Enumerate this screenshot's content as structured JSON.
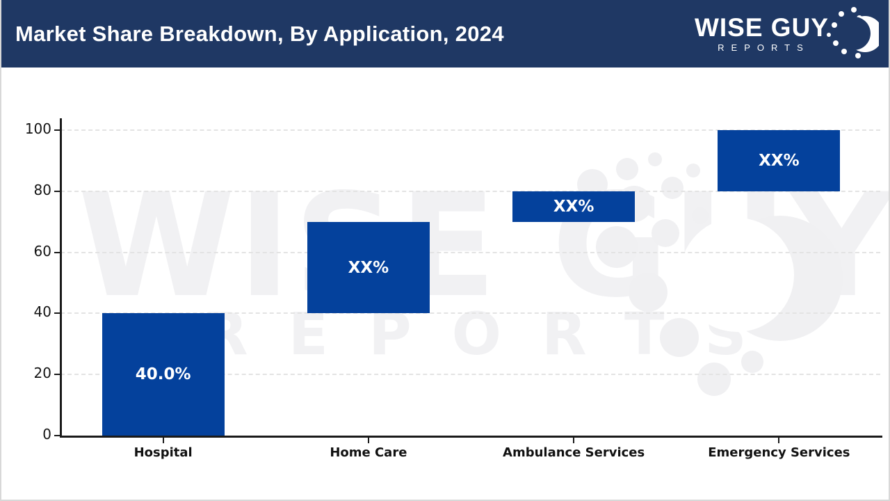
{
  "header": {
    "title": "Market Share Breakdown, By Application, 2024",
    "logo": {
      "name": "WISE GUY",
      "sub": "REPORTS",
      "icon": "dotted-face-profile"
    }
  },
  "watermark": {
    "line1": "WISE GUY",
    "line2": "REPORTS"
  },
  "colors": {
    "header_bg": "#1f3864",
    "bar": "#04419c",
    "grid": "#e3e3e3",
    "axis": "#1a1a1a",
    "bar_label": "#ffffff",
    "watermark": "#f1f1f3"
  },
  "chart_data": {
    "type": "bar",
    "subtype": "waterfall",
    "title": "Market Share Breakdown, By Application, 2024",
    "categories": [
      "Hospital",
      "Home Care",
      "Ambulance Services",
      "Emergency Services"
    ],
    "segments": [
      {
        "category": "Hospital",
        "start": 0,
        "end": 40,
        "label": "40.0%"
      },
      {
        "category": "Home Care",
        "start": 40,
        "end": 70,
        "label": "XX%"
      },
      {
        "category": "Ambulance Services",
        "start": 70,
        "end": 80,
        "label": "XX%"
      },
      {
        "category": "Emergency Services",
        "start": 80,
        "end": 100,
        "label": "XX%"
      }
    ],
    "yticks": [
      0,
      20,
      40,
      60,
      80,
      100
    ],
    "ylim": [
      0,
      104
    ],
    "xlabel": "",
    "ylabel": "",
    "grid": "horizontal-dashed",
    "legend": "none"
  }
}
